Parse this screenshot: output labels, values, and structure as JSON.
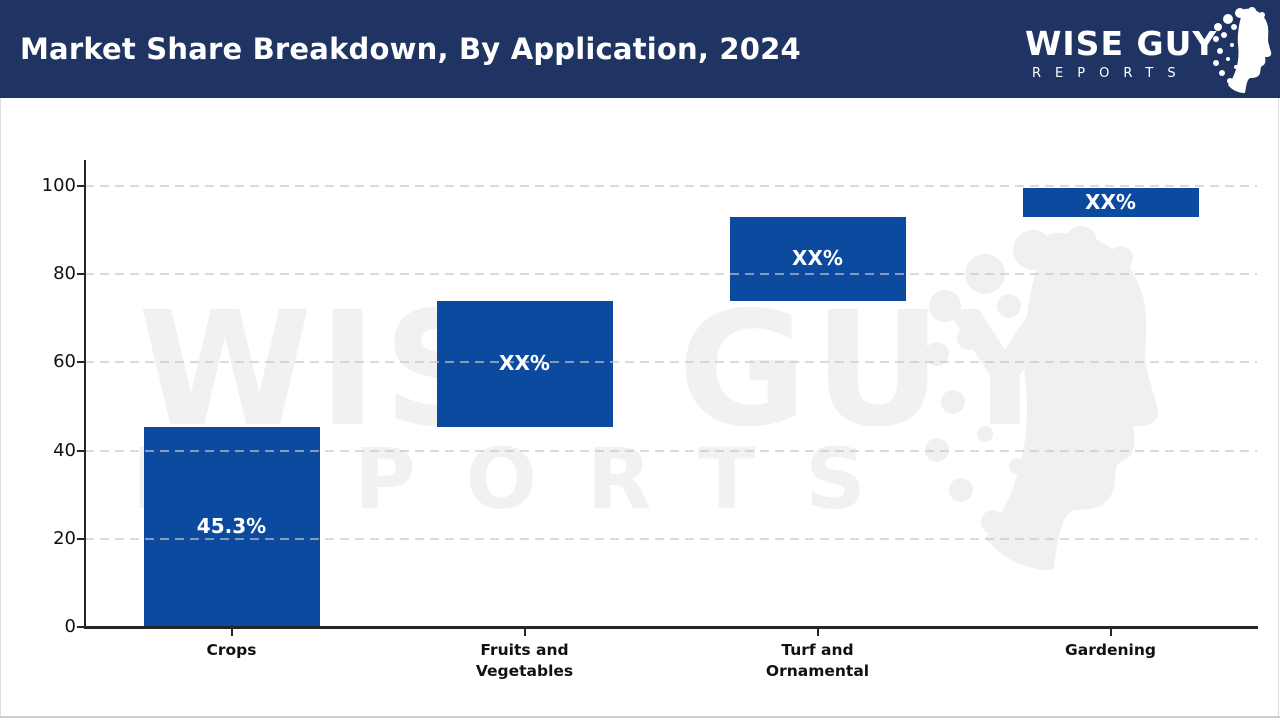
{
  "header": {
    "title": "Market Share Breakdown, By Application, 2024",
    "logo": {
      "line1": "WISE GUY",
      "line2": "REPORTS"
    }
  },
  "watermark": {
    "line1": "WISE GUY",
    "line2": "REPORTS",
    "head_icon": "dotted-face-profile"
  },
  "colors": {
    "header_bg": "#1f3462",
    "bar": "#0b4a9e",
    "axis": "#262626",
    "grid": "#c6c6c6",
    "tick_text": "#111111",
    "label_on_bar": "#ffffff",
    "watermark": "#f1f1f1"
  },
  "chart_data": {
    "type": "bar",
    "subtype": "waterfall",
    "title": "Market Share Breakdown, By Application, 2024",
    "categories": [
      "Crops",
      "Fruits and\nVegetables",
      "Turf and\nOrnamental",
      "Gardening"
    ],
    "bars": [
      {
        "category": "Crops",
        "start": 0,
        "end": 45.3,
        "label": "45.3%"
      },
      {
        "category": "Fruits and Vegetables",
        "start": 45.3,
        "end": 74,
        "label": "XX%"
      },
      {
        "category": "Turf and Ornamental",
        "start": 74,
        "end": 93,
        "label": "XX%"
      },
      {
        "category": "Gardening",
        "start": 93,
        "end": 99.5,
        "label": "XX%"
      }
    ],
    "yticks": [
      0,
      20,
      40,
      60,
      80,
      100
    ],
    "ylim": [
      0,
      105.9
    ],
    "xlabel": "",
    "ylabel": "",
    "grid": "horizontal dashed",
    "legend": null
  }
}
